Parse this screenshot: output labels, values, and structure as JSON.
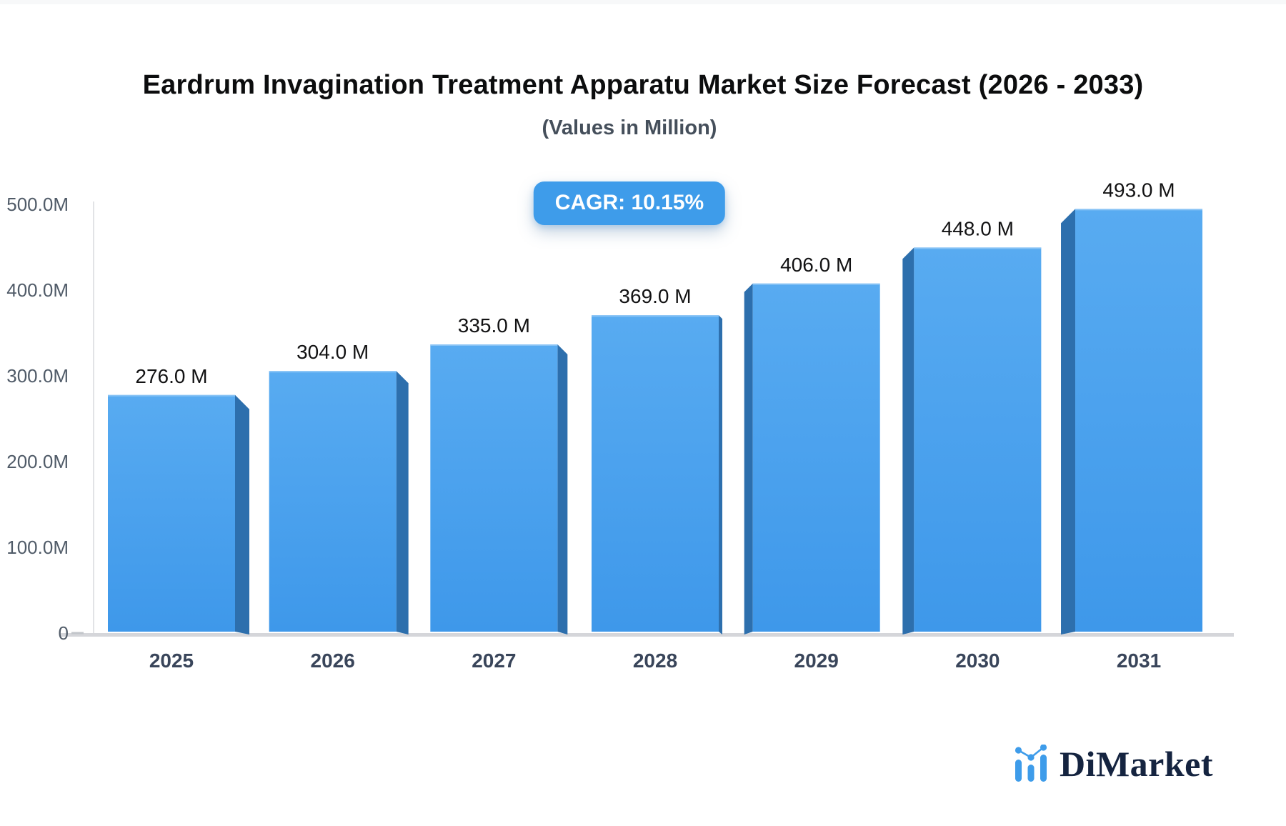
{
  "header": {
    "title": "Eardrum Invagination Treatment Apparatu Market Size Forecast (2026 - 2033)",
    "subtitle": "(Values in Million)",
    "cagr_badge": "CAGR: 10.15%"
  },
  "chart_data": {
    "type": "bar",
    "title": "Eardrum Invagination Treatment Apparatu Market Size Forecast (2026 - 2033)",
    "subtitle": "(Values in Million)",
    "annotation": "CAGR: 10.15%",
    "categories": [
      "2025",
      "2026",
      "2027",
      "2028",
      "2029",
      "2030",
      "2031"
    ],
    "values": [
      276,
      304,
      335,
      369,
      406,
      448,
      493
    ],
    "value_labels": [
      "276.0 M",
      "304.0 M",
      "335.0 M",
      "369.0 M",
      "406.0 M",
      "448.0 M",
      "493.0 M"
    ],
    "ylabel": "",
    "xlabel": "",
    "ylim": [
      0,
      500
    ],
    "y_axis": {
      "tick_values": [
        0,
        100,
        200,
        300,
        400,
        500
      ],
      "tick_labels": [
        "0",
        "100.0M",
        "200.0M",
        "300.0M",
        "400.0M",
        "500.0M"
      ]
    },
    "grid": false,
    "legend": false,
    "bar_style": "pseudo-3d, depth side facing chart center"
  },
  "footer": {
    "logo_text": "DiMarket",
    "logo_icon": "mini-bar-chart-icon"
  },
  "colors": {
    "accent_blue": "#3e9cea",
    "bar_top": "#58abf1",
    "bar_bottom": "#3e98ea",
    "bar_side": "#2d6fad",
    "bar_top_highlight": "#8ec6f6",
    "axis_line": "#d5d6da",
    "y_axis_line": "#e2e3e6",
    "tick_text": "#505b68",
    "x_label_text": "#39455a",
    "value_label_text": "#121213",
    "title_text": "#0c0d0e",
    "subtitle_text": "#454f5b",
    "logo_navy": "#152440"
  }
}
